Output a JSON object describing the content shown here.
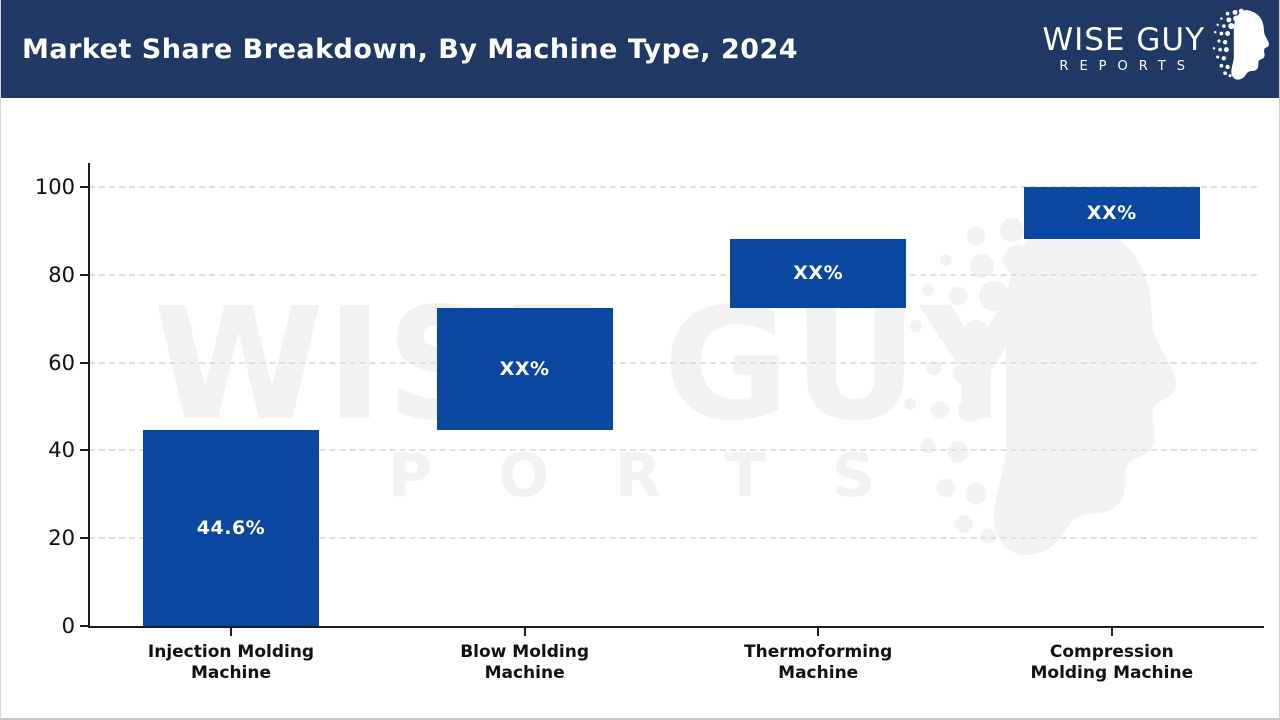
{
  "header": {
    "title": "Market Share Breakdown, By Machine Type, 2024",
    "logo": {
      "line1": "WISE GUY",
      "line2": "REPORTS"
    }
  },
  "watermark": {
    "line1": "WISE GUY",
    "line2": "REPORTS"
  },
  "colors": {
    "header_bg": "#1f3864",
    "bar": "#0a47a1",
    "value_label": "#ffffff",
    "gridline": "#dfdfdf",
    "axis": "#1c1c1c",
    "watermark": "#f2f2f2"
  },
  "chart_data": {
    "type": "bar",
    "subtype": "waterfall-floating-bars",
    "title": "Market Share Breakdown, By Machine Type, 2024",
    "xlabel": "",
    "ylabel": "",
    "ylim": [
      0,
      100
    ],
    "yticks": [
      0,
      20,
      40,
      60,
      80,
      100
    ],
    "grid": "horizontal-dashed",
    "legend": "none",
    "categories": [
      "Injection Molding Machine",
      "Blow Molding Machine",
      "Thermoforming Machine",
      "Compression Molding Machine"
    ],
    "bars": [
      {
        "category": "Injection Molding Machine",
        "label_lines": [
          "Injection Molding",
          "Machine"
        ],
        "start": 0,
        "end": 44.6,
        "value_label": "44.6%"
      },
      {
        "category": "Blow Molding Machine",
        "label_lines": [
          "Blow Molding",
          "Machine"
        ],
        "start": 44.6,
        "end": 72.4,
        "value_label": "XX%"
      },
      {
        "category": "Thermoforming Machine",
        "label_lines": [
          "Thermoforming",
          "Machine"
        ],
        "start": 72.4,
        "end": 88.2,
        "value_label": "XX%"
      },
      {
        "category": "Compression Molding Machine",
        "label_lines": [
          "Compression",
          "Molding Machine"
        ],
        "start": 88.2,
        "end": 100,
        "value_label": "XX%"
      }
    ]
  }
}
